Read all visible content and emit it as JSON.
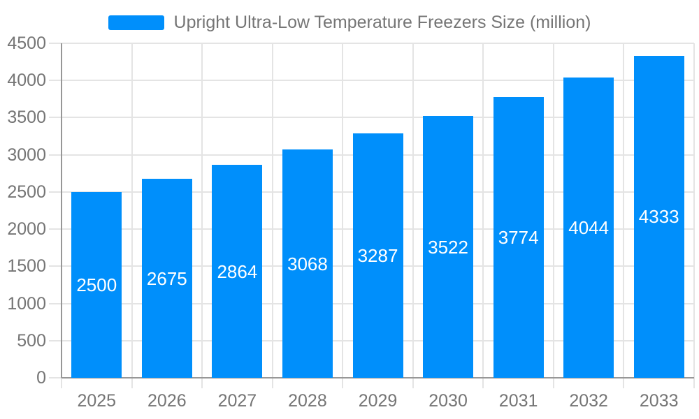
{
  "chart_data": {
    "type": "bar",
    "title": "Upright Ultra-Low Temperature Freezers Size (million)",
    "legend_position": "top",
    "categories": [
      "2025",
      "2026",
      "2027",
      "2028",
      "2029",
      "2030",
      "2031",
      "2032",
      "2033"
    ],
    "series": [
      {
        "name": "Upright Ultra-Low Temperature Freezers Size (million)",
        "values": [
          2500,
          2675,
          2864,
          3068,
          3287,
          3522,
          3774,
          4044,
          4333
        ]
      }
    ],
    "data_labels_shown": true,
    "xlabel": "",
    "ylabel": "",
    "ylim": [
      0,
      4500
    ],
    "ytick_step": 500,
    "ytick_labels": [
      "0",
      "500",
      "1000",
      "1500",
      "2000",
      "2500",
      "3000",
      "3500",
      "4000",
      "4500"
    ],
    "grid": {
      "horizontal": true,
      "vertical": true
    },
    "colors": {
      "bar": "#008FFB",
      "data_label": "#ffffff",
      "axis_label": "#757575",
      "legend_text": "#757575",
      "grid": "#e4e4e4",
      "axis_line": "#979797",
      "background": "#ffffff"
    }
  }
}
